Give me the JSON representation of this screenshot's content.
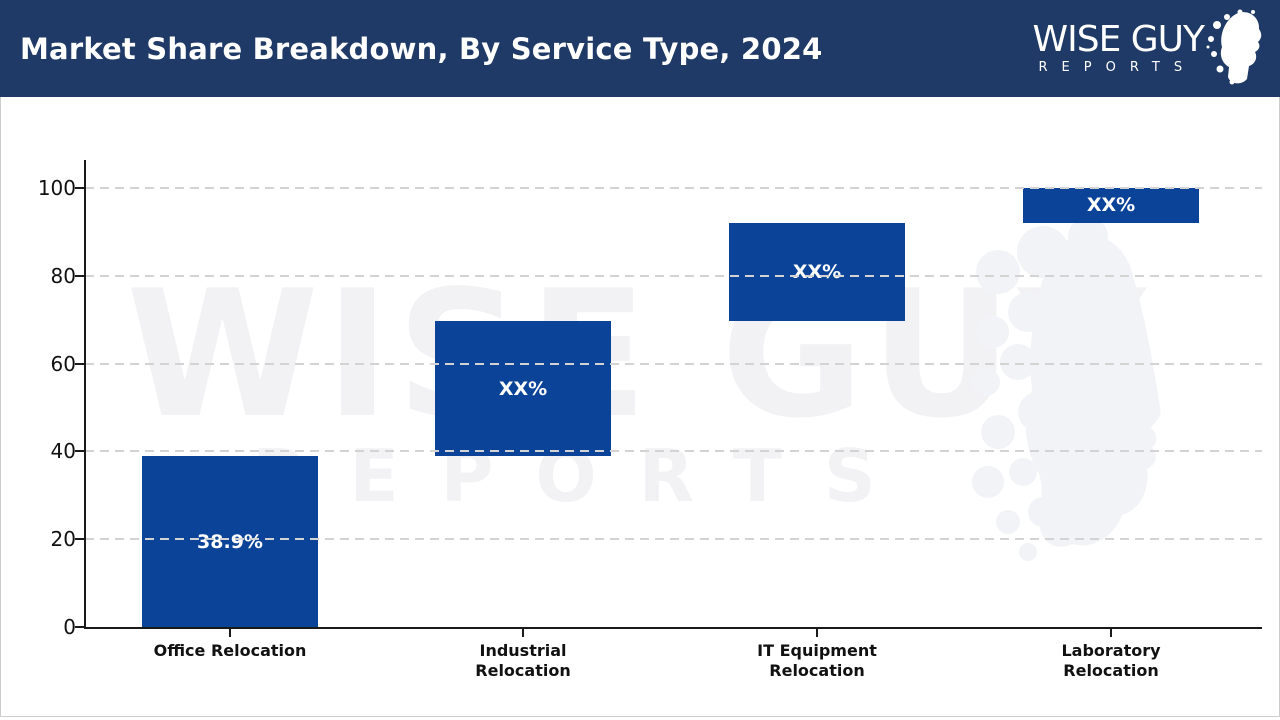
{
  "header": {
    "title": "Market Share Breakdown, By Service Type, 2024",
    "logo": {
      "wordmark": "WISE GUY",
      "subtext": "REPORTS"
    }
  },
  "watermark": {
    "line1": "WISE GUY",
    "line2": "REPORTS"
  },
  "chart_data": {
    "type": "bar",
    "subtype": "waterfall",
    "title": "Market Share Breakdown, By Service Type, 2024",
    "categories": [
      "Office Relocation",
      "Industrial\nRelocation",
      "IT Equipment\nRelocation",
      "Laboratory\nRelocation"
    ],
    "segments": [
      {
        "category": "Office Relocation",
        "start": 0,
        "end": 38.9,
        "label": "38.9%"
      },
      {
        "category": "Industrial Relocation",
        "start": 38.9,
        "end": 69.7,
        "label": "XX%"
      },
      {
        "category": "IT Equipment Relocation",
        "start": 69.7,
        "end": 92.1,
        "label": "XX%"
      },
      {
        "category": "Laboratory Relocation",
        "start": 92.1,
        "end": 100,
        "label": "XX%"
      }
    ],
    "ylim": [
      0,
      100
    ],
    "yticks": [
      0,
      20,
      40,
      60,
      80,
      100
    ],
    "grid": "horizontal-dashed",
    "legend": "none",
    "bar_color": "#0b4399",
    "bar_label_color": "#ffffff",
    "axis_color": "#1a1a1a",
    "gridline_color": "#d3d3d3"
  }
}
